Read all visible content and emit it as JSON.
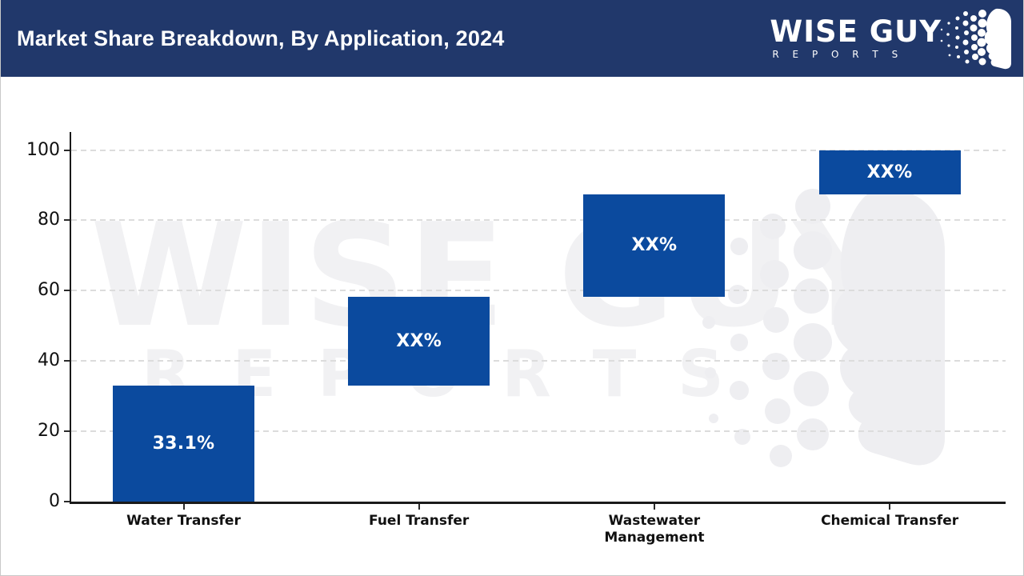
{
  "header": {
    "title": "Market Share Breakdown, By Application, 2024",
    "bg_color": "#21386b",
    "logo": {
      "wordmark": "WISE GUY",
      "subtitle": "R E P O R T S"
    }
  },
  "watermark": {
    "wordmark": "WISE GUY",
    "subtitle": "R E P O R T S"
  },
  "chart_data": {
    "type": "bar",
    "subtype": "waterfall (each bar starts where previous ends, cumulative market share)",
    "title": "Market Share Breakdown, By Application, 2024",
    "categories": [
      "Water Transfer",
      "Fuel Transfer",
      "Wastewater Management",
      "Chemical Transfer"
    ],
    "segments": [
      {
        "category": "Water Transfer",
        "start": 0,
        "end": 33.1,
        "value_label": "33.1%"
      },
      {
        "category": "Fuel Transfer",
        "start": 33.1,
        "end": 58.3,
        "value_label": "XX%"
      },
      {
        "category": "Wastewater Management",
        "start": 58.3,
        "end": 87.4,
        "value_label": "XX%"
      },
      {
        "category": "Chemical Transfer",
        "start": 87.4,
        "end": 100,
        "value_label": "XX%"
      }
    ],
    "yticks": [
      0,
      20,
      40,
      60,
      80,
      100
    ],
    "ylim": [
      0,
      105
    ],
    "xlabel": "",
    "ylabel": "",
    "bar_color": "#0b4a9e",
    "grid": "horizontal dashed gridlines",
    "legend": null
  }
}
